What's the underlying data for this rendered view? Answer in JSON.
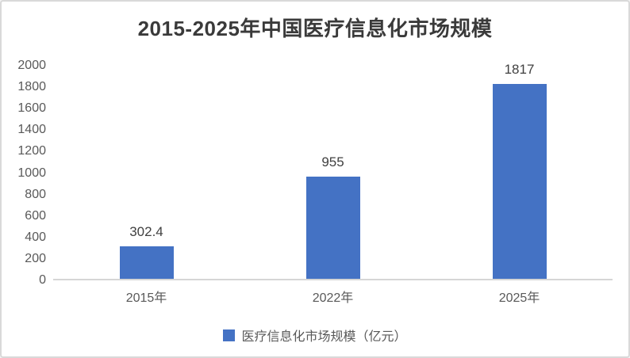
{
  "chart_data": {
    "type": "bar",
    "title": "2015-2025年中国医疗信息化市场规模",
    "categories": [
      "2015年",
      "2022年",
      "2025年"
    ],
    "values": [
      302.4,
      955,
      1817
    ],
    "value_labels": [
      "302.4",
      "955",
      "1817"
    ],
    "series_name": "医疗信息化市场规模（亿元）",
    "xlabel": "",
    "ylabel": "",
    "ylim": [
      0,
      2000
    ],
    "ytick_step": 200,
    "yticks": [
      0,
      200,
      400,
      600,
      800,
      1000,
      1200,
      1400,
      1600,
      1800,
      2000
    ],
    "grid": false,
    "legend_position": "bottom",
    "bar_color": "#4472C4",
    "axis_line_color": "#d6d6d6",
    "tick_label_color": "#595959",
    "title_color": "#3a3a3a"
  }
}
